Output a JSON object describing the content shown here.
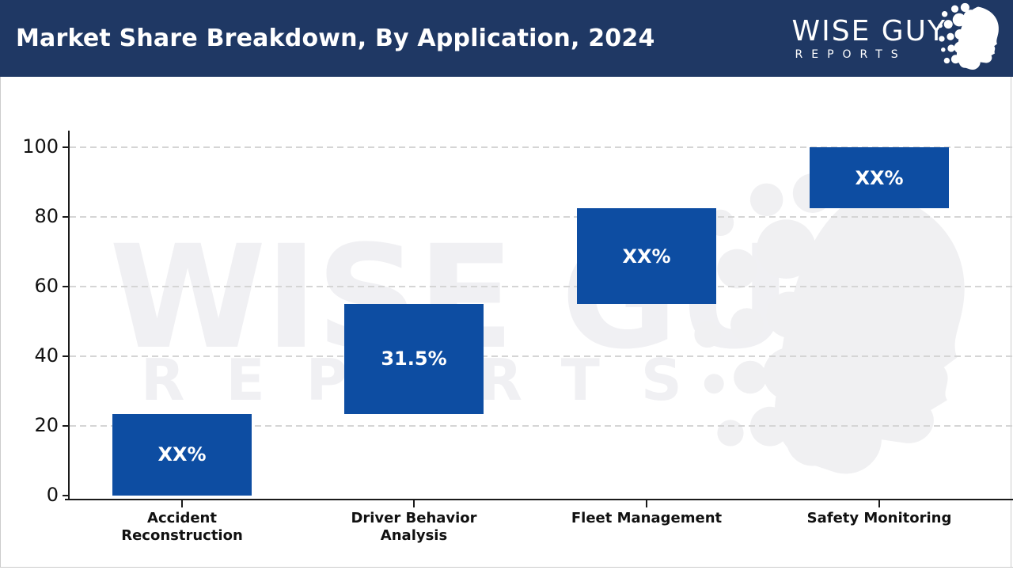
{
  "header": {
    "title": "Market Share Breakdown, By Application, 2024",
    "bg_color": "#1F3864",
    "logo": {
      "line1": "WISE GUY",
      "line2": "REPORTS"
    }
  },
  "watermark": {
    "line1": "WISE GUY",
    "line2": "REPORTS"
  },
  "colors": {
    "header_bg": "#1F3864",
    "bar_blue": "#0D4DA2",
    "grid_gray": "#D5D5D5",
    "axis_black": "#1A1A1A",
    "watermark_gray": "#F0F0F3",
    "border_gray": "#CCCCCC",
    "value_label_white": "#FFFFFF"
  },
  "chart_data": {
    "type": "bar",
    "variant": "floating-segment",
    "title": "Market Share Breakdown, By Application, 2024",
    "xlabel": "",
    "ylabel": "",
    "ylim": [
      0,
      100
    ],
    "yticks": [
      0,
      20,
      40,
      60,
      80,
      100
    ],
    "grid": "dashed-horizontal",
    "legend": "none",
    "categories": [
      "Accident Reconstruction",
      "Driver Behavior Analysis",
      "Fleet Management",
      "Safety Monitoring"
    ],
    "category_lines": [
      [
        "Accident",
        "Reconstruction"
      ],
      [
        "Driver Behavior",
        "Analysis"
      ],
      [
        "Fleet Management"
      ],
      [
        "Safety Monitoring"
      ]
    ],
    "bars": [
      {
        "category": "Accident Reconstruction",
        "label": "XX%",
        "start": 0,
        "end": 23.5
      },
      {
        "category": "Driver Behavior Analysis",
        "label": "31.5%",
        "start": 23.5,
        "end": 55
      },
      {
        "category": "Fleet Management",
        "label": "XX%",
        "start": 55,
        "end": 82.5
      },
      {
        "category": "Safety Monitoring",
        "label": "XX%",
        "start": 82.5,
        "end": 100
      }
    ]
  }
}
